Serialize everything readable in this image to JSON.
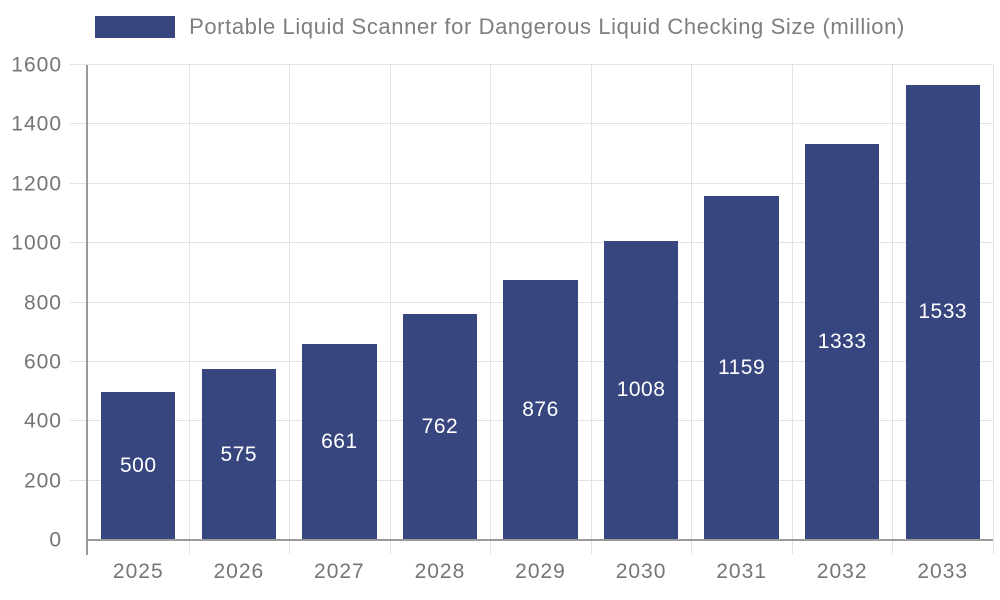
{
  "legend": {
    "swatch_color": "#384680"
  },
  "chart_data": {
    "type": "bar",
    "title": "Portable Liquid Scanner for Dangerous Liquid Checking Size (million)",
    "categories": [
      "2025",
      "2026",
      "2027",
      "2028",
      "2029",
      "2030",
      "2031",
      "2032",
      "2033"
    ],
    "values": [
      500,
      575,
      661,
      762,
      876,
      1008,
      1159,
      1333,
      1533
    ],
    "value_labels": [
      "500",
      "575",
      "661",
      "762",
      "876",
      "1008",
      "1159",
      "1333",
      "1533"
    ],
    "xlabel": "",
    "ylabel": "",
    "ylim": [
      0,
      1600
    ],
    "ytick_step": 200,
    "yticks": [
      0,
      200,
      400,
      600,
      800,
      1000,
      1200,
      1400,
      1600
    ],
    "grid": true,
    "legend_position": "top",
    "bar_width_ratio": 0.74,
    "colors": {
      "bar": "#384680",
      "bar_value_text": "#ffffff",
      "grid_line": "#e2e2e2",
      "axis_line": "#9a9a9a",
      "tick_text": "#757575",
      "legend_text": "#7e7e7e",
      "background": "#ffffff"
    }
  }
}
